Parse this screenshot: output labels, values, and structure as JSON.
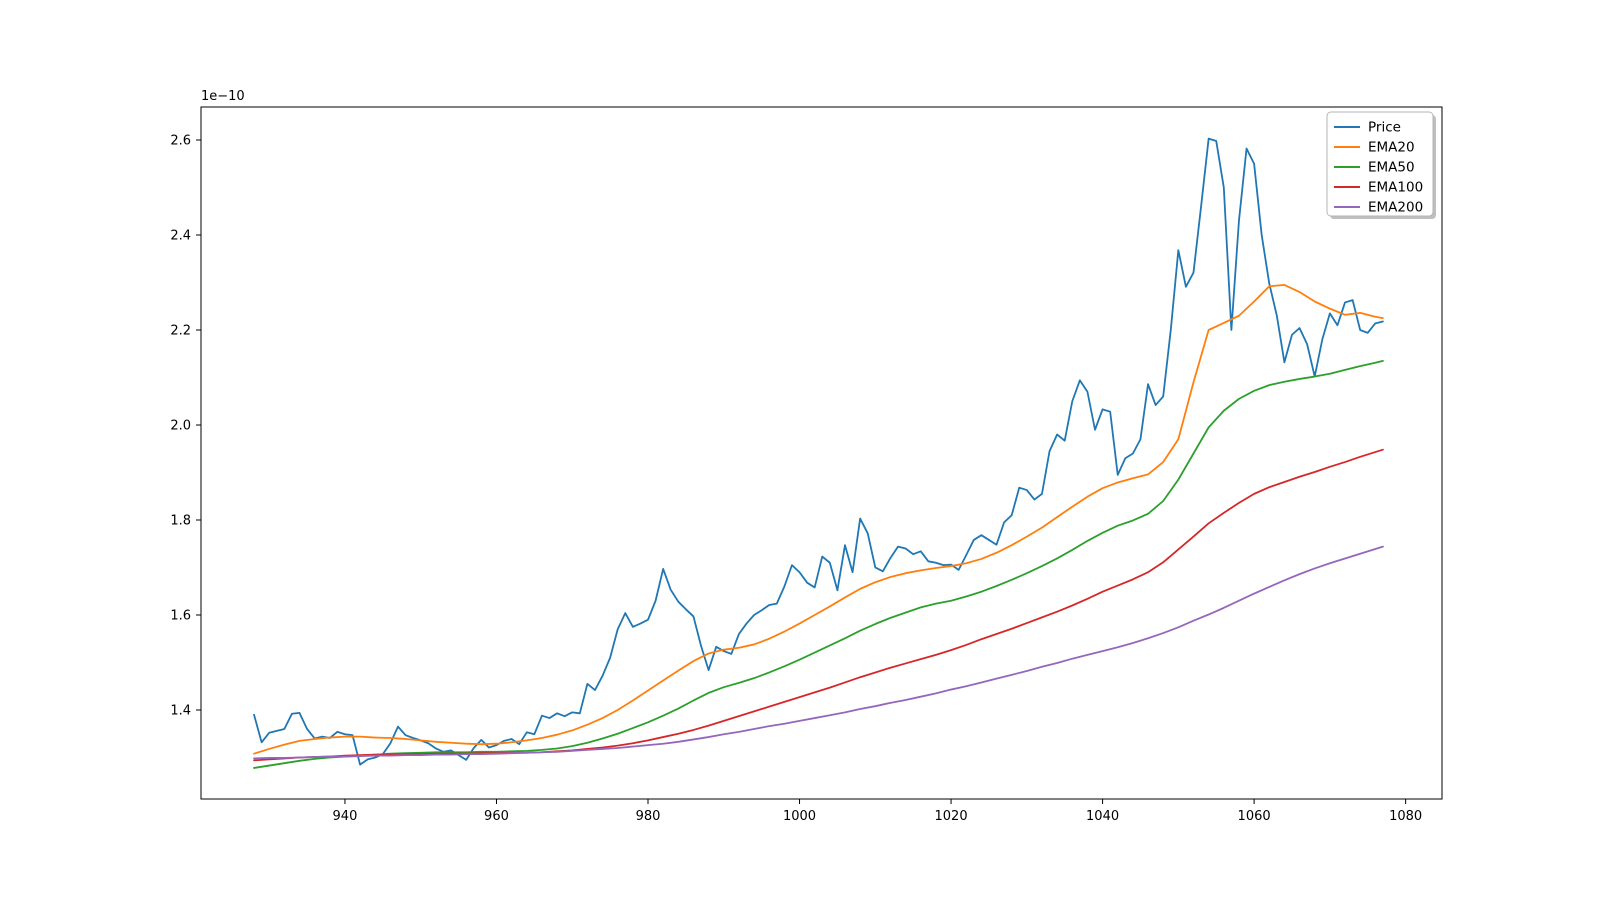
{
  "figure": {
    "background": "#ffffff",
    "offset_label": "1e−10"
  },
  "legend": {
    "position": "upper right",
    "border_color": "#b5b5b5",
    "background": "#ffffff",
    "entries": [
      {
        "label": "Price",
        "color": "#1f77b4"
      },
      {
        "label": "EMA20",
        "color": "#ff7f0e"
      },
      {
        "label": "EMA50",
        "color": "#2ca02c"
      },
      {
        "label": "EMA100",
        "color": "#d62728"
      },
      {
        "label": "EMA200",
        "color": "#9467bd"
      }
    ]
  },
  "chart_data": {
    "type": "line",
    "title": "",
    "xlabel": "",
    "ylabel": "",
    "y_offset_multiplier": "1e-10",
    "grid": false,
    "legend_position": "upper right",
    "xlim": [
      921.0,
      1084.8
    ],
    "ylim": [
      1.2126,
      2.6695
    ],
    "x_ticks": [
      940,
      960,
      980,
      1000,
      1020,
      1040,
      1060,
      1080
    ],
    "x_tick_labels": [
      "940",
      "960",
      "980",
      "1000",
      "1020",
      "1040",
      "1060",
      "1080"
    ],
    "y_ticks": [
      1.4,
      1.6,
      1.8,
      2.0,
      2.2,
      2.4,
      2.6
    ],
    "y_tick_labels": [
      "1.4",
      "1.6",
      "1.8",
      "2.0",
      "2.2",
      "2.4",
      "2.6"
    ],
    "series": [
      {
        "name": "Price",
        "color": "#1f77b4",
        "x_start": 928,
        "x_step": 1,
        "y": [
          1.39,
          1.332,
          1.352,
          1.356,
          1.36,
          1.392,
          1.394,
          1.36,
          1.34,
          1.344,
          1.341,
          1.354,
          1.349,
          1.347,
          1.285,
          1.296,
          1.3,
          1.307,
          1.33,
          1.365,
          1.347,
          1.341,
          1.336,
          1.33,
          1.319,
          1.312,
          1.315,
          1.305,
          1.295,
          1.32,
          1.337,
          1.321,
          1.326,
          1.335,
          1.339,
          1.328,
          1.353,
          1.349,
          1.388,
          1.383,
          1.393,
          1.387,
          1.395,
          1.393,
          1.455,
          1.442,
          1.472,
          1.51,
          1.57,
          1.604,
          1.575,
          1.582,
          1.59,
          1.63,
          1.697,
          1.653,
          1.628,
          1.612,
          1.597,
          1.535,
          1.484,
          1.533,
          1.524,
          1.518,
          1.56,
          1.582,
          1.6,
          1.61,
          1.621,
          1.624,
          1.66,
          1.705,
          1.69,
          1.668,
          1.658,
          1.723,
          1.71,
          1.652,
          1.747,
          1.69,
          1.803,
          1.772,
          1.7,
          1.692,
          1.72,
          1.744,
          1.74,
          1.728,
          1.734,
          1.713,
          1.71,
          1.705,
          1.706,
          1.695,
          1.726,
          1.758,
          1.768,
          1.758,
          1.748,
          1.795,
          1.81,
          1.868,
          1.863,
          1.843,
          1.855,
          1.945,
          1.98,
          1.967,
          2.05,
          2.094,
          2.07,
          1.99,
          2.033,
          2.028,
          1.895,
          1.93,
          1.94,
          1.97,
          2.086,
          2.042,
          2.06,
          2.2,
          2.368,
          2.291,
          2.321,
          2.46,
          2.603,
          2.598,
          2.5,
          2.2,
          2.43,
          2.582,
          2.55,
          2.4,
          2.298,
          2.23,
          2.132,
          2.19,
          2.204,
          2.17,
          2.102,
          2.18,
          2.235,
          2.21,
          2.258,
          2.263,
          2.2,
          2.194,
          2.214,
          2.218
        ]
      },
      {
        "name": "EMA20",
        "color": "#ff7f0e",
        "x_start": 928,
        "x_step": 2,
        "x_last": 1077,
        "y": [
          1.308,
          1.318,
          1.327,
          1.335,
          1.339,
          1.342,
          1.344,
          1.344,
          1.342,
          1.341,
          1.339,
          1.336,
          1.333,
          1.331,
          1.329,
          1.328,
          1.329,
          1.332,
          1.336,
          1.341,
          1.348,
          1.357,
          1.369,
          1.383,
          1.4,
          1.42,
          1.441,
          1.462,
          1.483,
          1.503,
          1.519,
          1.527,
          1.531,
          1.538,
          1.55,
          1.565,
          1.582,
          1.6,
          1.618,
          1.637,
          1.655,
          1.669,
          1.68,
          1.688,
          1.694,
          1.699,
          1.703,
          1.709,
          1.718,
          1.731,
          1.747,
          1.765,
          1.784,
          1.806,
          1.828,
          1.849,
          1.867,
          1.879,
          1.888,
          1.896,
          1.922,
          1.97,
          2.09,
          2.2,
          2.215,
          2.23,
          2.26,
          2.292,
          2.295,
          2.28,
          2.26,
          2.245,
          2.232,
          2.236,
          2.228,
          2.225
        ]
      },
      {
        "name": "EMA50",
        "color": "#2ca02c",
        "x_start": 928,
        "x_step": 2,
        "x_last": 1077,
        "y": [
          1.278,
          1.283,
          1.288,
          1.293,
          1.297,
          1.3,
          1.302,
          1.304,
          1.306,
          1.308,
          1.309,
          1.31,
          1.311,
          1.311,
          1.311,
          1.312,
          1.312,
          1.313,
          1.314,
          1.316,
          1.319,
          1.324,
          1.331,
          1.34,
          1.35,
          1.362,
          1.374,
          1.388,
          1.403,
          1.42,
          1.436,
          1.448,
          1.457,
          1.467,
          1.479,
          1.492,
          1.506,
          1.521,
          1.536,
          1.551,
          1.567,
          1.581,
          1.594,
          1.605,
          1.616,
          1.624,
          1.63,
          1.639,
          1.649,
          1.661,
          1.674,
          1.688,
          1.703,
          1.719,
          1.737,
          1.756,
          1.773,
          1.788,
          1.799,
          1.813,
          1.84,
          1.885,
          1.94,
          1.995,
          2.03,
          2.055,
          2.072,
          2.084,
          2.091,
          2.097,
          2.102,
          2.108,
          2.116,
          2.124,
          2.131,
          2.135
        ]
      },
      {
        "name": "EMA100",
        "color": "#d62728",
        "x_start": 928,
        "x_step": 2,
        "x_last": 1077,
        "y": [
          1.294,
          1.296,
          1.298,
          1.3,
          1.301,
          1.302,
          1.304,
          1.305,
          1.306,
          1.306,
          1.307,
          1.307,
          1.308,
          1.308,
          1.308,
          1.309,
          1.309,
          1.31,
          1.31,
          1.311,
          1.313,
          1.315,
          1.318,
          1.321,
          1.325,
          1.33,
          1.336,
          1.343,
          1.35,
          1.358,
          1.367,
          1.377,
          1.387,
          1.397,
          1.407,
          1.417,
          1.427,
          1.437,
          1.447,
          1.458,
          1.469,
          1.479,
          1.489,
          1.498,
          1.507,
          1.516,
          1.526,
          1.537,
          1.549,
          1.56,
          1.571,
          1.583,
          1.595,
          1.607,
          1.62,
          1.634,
          1.649,
          1.662,
          1.675,
          1.69,
          1.711,
          1.738,
          1.765,
          1.793,
          1.815,
          1.836,
          1.855,
          1.869,
          1.88,
          1.891,
          1.901,
          1.912,
          1.922,
          1.933,
          1.943,
          1.948
        ]
      },
      {
        "name": "EMA200",
        "color": "#9467bd",
        "x_start": 928,
        "x_step": 2,
        "x_last": 1077,
        "y": [
          1.298,
          1.299,
          1.299,
          1.3,
          1.301,
          1.302,
          1.302,
          1.303,
          1.304,
          1.304,
          1.305,
          1.305,
          1.306,
          1.306,
          1.307,
          1.307,
          1.308,
          1.309,
          1.31,
          1.311,
          1.312,
          1.314,
          1.316,
          1.318,
          1.32,
          1.323,
          1.326,
          1.329,
          1.333,
          1.338,
          1.343,
          1.349,
          1.354,
          1.36,
          1.366,
          1.371,
          1.377,
          1.383,
          1.389,
          1.395,
          1.402,
          1.408,
          1.415,
          1.421,
          1.428,
          1.435,
          1.443,
          1.45,
          1.458,
          1.466,
          1.474,
          1.482,
          1.491,
          1.499,
          1.508,
          1.516,
          1.524,
          1.532,
          1.541,
          1.551,
          1.562,
          1.574,
          1.588,
          1.601,
          1.615,
          1.63,
          1.645,
          1.659,
          1.673,
          1.686,
          1.698,
          1.709,
          1.719,
          1.729,
          1.739,
          1.744
        ]
      }
    ]
  }
}
